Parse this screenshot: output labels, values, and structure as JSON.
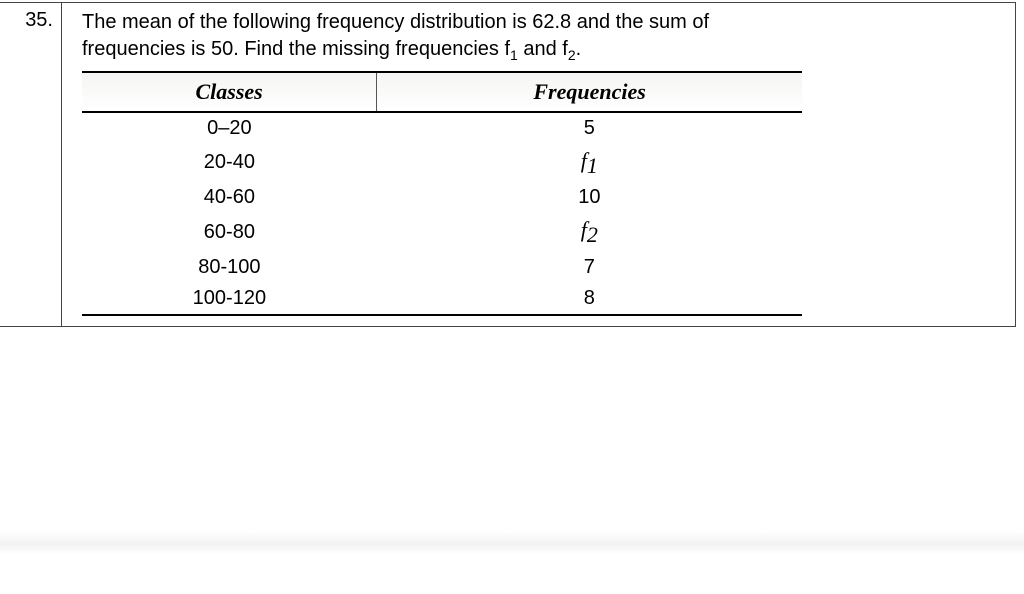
{
  "question": {
    "number": "35.",
    "text_line1": "The mean of the following frequency distribution is 62.8 and the sum of",
    "text_line2_prefix": "frequencies is 50. Find the missing frequencies f",
    "text_line2_sub1": "1",
    "text_line2_mid": " and f",
    "text_line2_sub2": "2",
    "text_line2_suffix": "."
  },
  "table": {
    "headers": {
      "classes": "Classes",
      "frequencies": "Frequencies"
    },
    "rows": [
      {
        "class": "0–20",
        "freq": "5"
      },
      {
        "class": "20-40",
        "freq_var": "f",
        "freq_sub": "1"
      },
      {
        "class": "40-60",
        "freq": "10"
      },
      {
        "class": "60-80",
        "freq_var": "f",
        "freq_sub": "2"
      },
      {
        "class": "80-100",
        "freq": "7"
      },
      {
        "class": "100-120",
        "freq": "8"
      }
    ]
  },
  "style": {
    "page_bg": "#ffffff",
    "text_color": "#000000",
    "border_color": "#444444",
    "rule_color": "#000000",
    "body_fontsize_pt": 15,
    "header_fontsize_pt": 16
  }
}
